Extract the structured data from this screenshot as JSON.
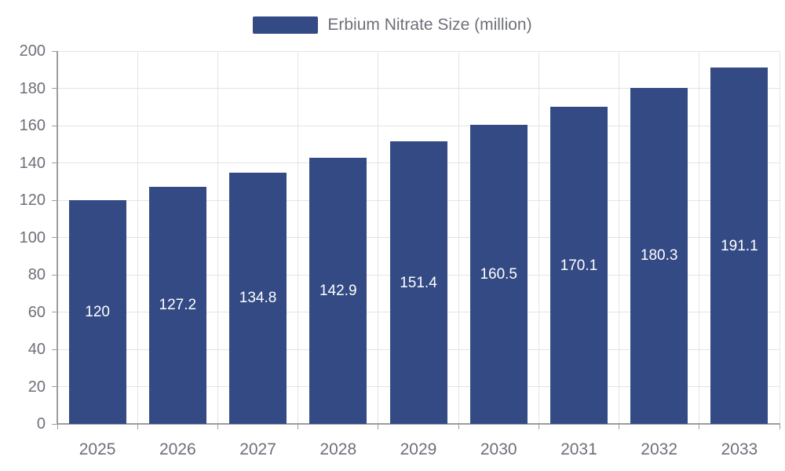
{
  "legend": {
    "label": "Erbium Nitrate Size (million)"
  },
  "chart_data": {
    "type": "bar",
    "title": "",
    "xlabel": "",
    "ylabel": "",
    "categories": [
      "2025",
      "2026",
      "2027",
      "2028",
      "2029",
      "2030",
      "2031",
      "2032",
      "2033"
    ],
    "series": [
      {
        "name": "Erbium Nitrate Size (million)",
        "values": [
          120,
          127.2,
          134.8,
          142.9,
          151.4,
          160.5,
          170.1,
          180.3,
          191.1
        ]
      }
    ],
    "value_labels": [
      "120",
      "127.2",
      "134.8",
      "142.9",
      "151.4",
      "160.5",
      "170.1",
      "180.3",
      "191.1"
    ],
    "ylim": [
      0,
      200
    ],
    "ytick_step": 20,
    "grid": true,
    "legend_position": "top-center",
    "value_label_position": "inside-center",
    "colors": {
      "bar": "#344a84",
      "axis": "#9d9d9d",
      "gridline": "#e4e4e8",
      "tick_text": "#6e7079",
      "value_text": "#ffffff",
      "background": "#ffffff"
    }
  }
}
